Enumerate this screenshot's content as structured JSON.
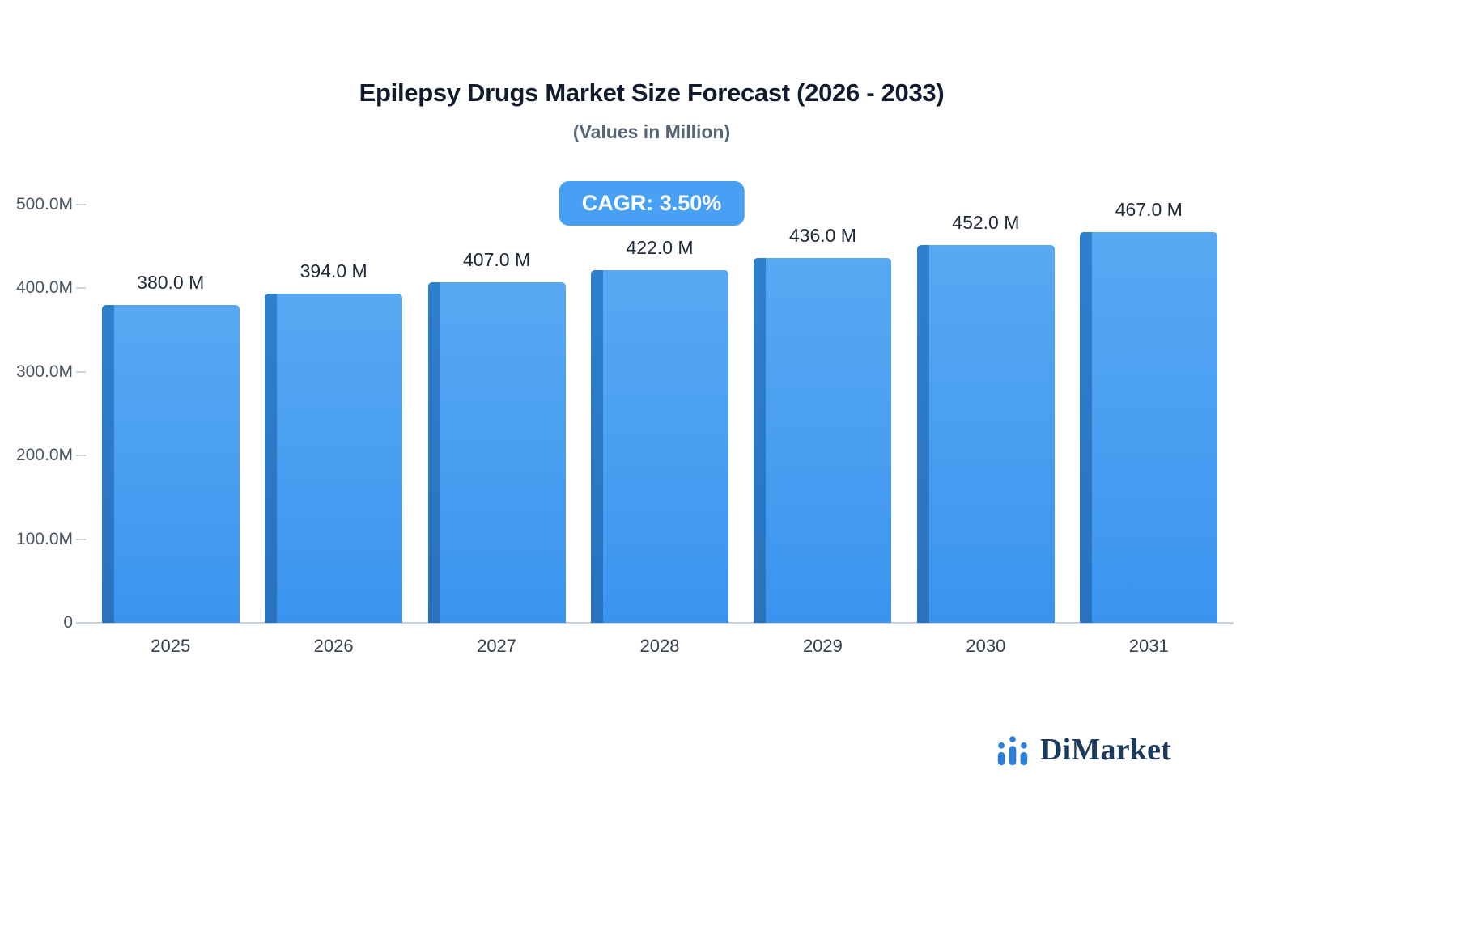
{
  "header": {
    "title": "Epilepsy Drugs Market Size Forecast (2026 - 2033)",
    "subtitle": "(Values in Million)"
  },
  "badge": {
    "label": "CAGR: 3.50%",
    "bg_color": "#47a0f4",
    "text_color": "#ffffff"
  },
  "chart_data": {
    "type": "bar",
    "title": "Epilepsy Drugs Market Size Forecast (2026 - 2033)",
    "subtitle": "(Values in Million)",
    "categories": [
      "2025",
      "2026",
      "2027",
      "2028",
      "2029",
      "2030",
      "2031"
    ],
    "values": [
      380.0,
      394.0,
      407.0,
      422.0,
      436.0,
      452.0,
      467.0
    ],
    "value_labels": [
      "380.0 M",
      "394.0 M",
      "407.0 M",
      "422.0 M",
      "436.0 M",
      "452.0 M",
      "467.0 M"
    ],
    "unit": "Million",
    "cagr": "3.50%",
    "xlabel": "",
    "ylabel": "",
    "ylim": [
      0,
      500
    ],
    "y_ticks": [
      {
        "value": 500,
        "label": "500.0M"
      },
      {
        "value": 400,
        "label": "400.0M"
      },
      {
        "value": 300,
        "label": "300.0M"
      },
      {
        "value": 200,
        "label": "200.0M"
      },
      {
        "value": 100,
        "label": "100.0M"
      },
      {
        "value": 0,
        "label": "0"
      }
    ],
    "grid": false,
    "legend": "none",
    "bar_color_top": "#58a9f2",
    "bar_color_bottom": "#3a94ef",
    "bar_side_color": "#2e80cf",
    "bar_side_color_bottom": "#2a72bd"
  },
  "footer": {
    "brand": "DiMarket",
    "logo_color": "#2d7ed8",
    "wordmark_color": "#1b3a5e"
  }
}
